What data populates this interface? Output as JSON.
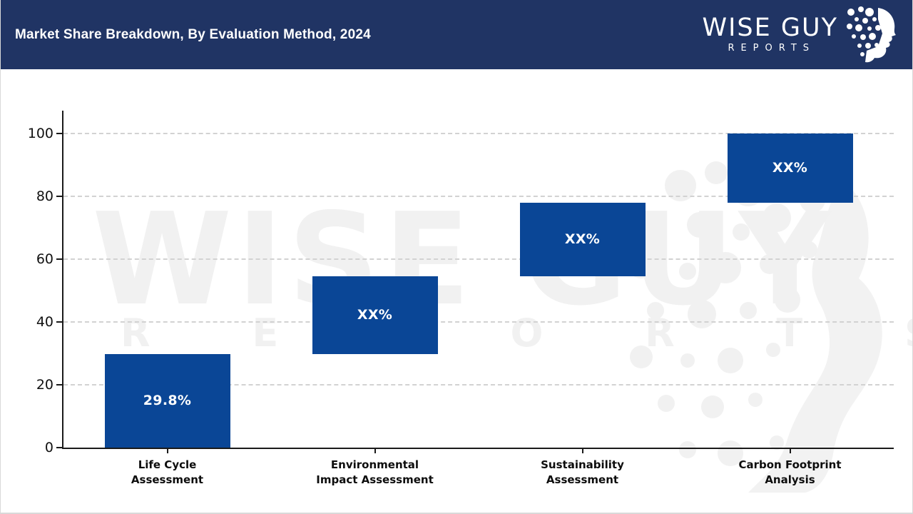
{
  "header": {
    "title": "Market Share Breakdown, By Evaluation Method, 2024",
    "bg_color": "#203464",
    "logo": {
      "wordmark": "WISE GUY",
      "subtext": "REPORTS",
      "head_icon": "dotted-profile-head"
    }
  },
  "watermark": {
    "line1": "WISE GUY",
    "line2": "R E P O R T S",
    "head_icon": "dotted-profile-head",
    "color": "#f1f1f1"
  },
  "chart_data": {
    "type": "bar",
    "subtype": "floating-waterfall",
    "title": "Market Share Breakdown, By Evaluation Method, 2024",
    "categories": [
      [
        "Life Cycle",
        "Assessment"
      ],
      [
        "Environmental",
        "Impact Assessment"
      ],
      [
        "Sustainability",
        "Assessment"
      ],
      [
        "Carbon Footprint",
        "Analysis"
      ]
    ],
    "segments": [
      {
        "label": "29.8%",
        "start": 0,
        "end": 29.8
      },
      {
        "label": "XX%",
        "start": 29.8,
        "end": 54.6
      },
      {
        "label": "XX%",
        "start": 54.6,
        "end": 78.0
      },
      {
        "label": "XX%",
        "start": 78.0,
        "end": 100.0
      }
    ],
    "xlabel": "",
    "ylabel": "",
    "ylim": [
      0,
      100
    ],
    "yticks": [
      0,
      20,
      40,
      60,
      80,
      100
    ],
    "grid": "horizontal-dashed",
    "grid_color": "#d2d2d2",
    "bar_color": "#0a4696",
    "bar_label_color": "#ffffff",
    "axis_color": "#1a1a1a",
    "legend": "none"
  }
}
